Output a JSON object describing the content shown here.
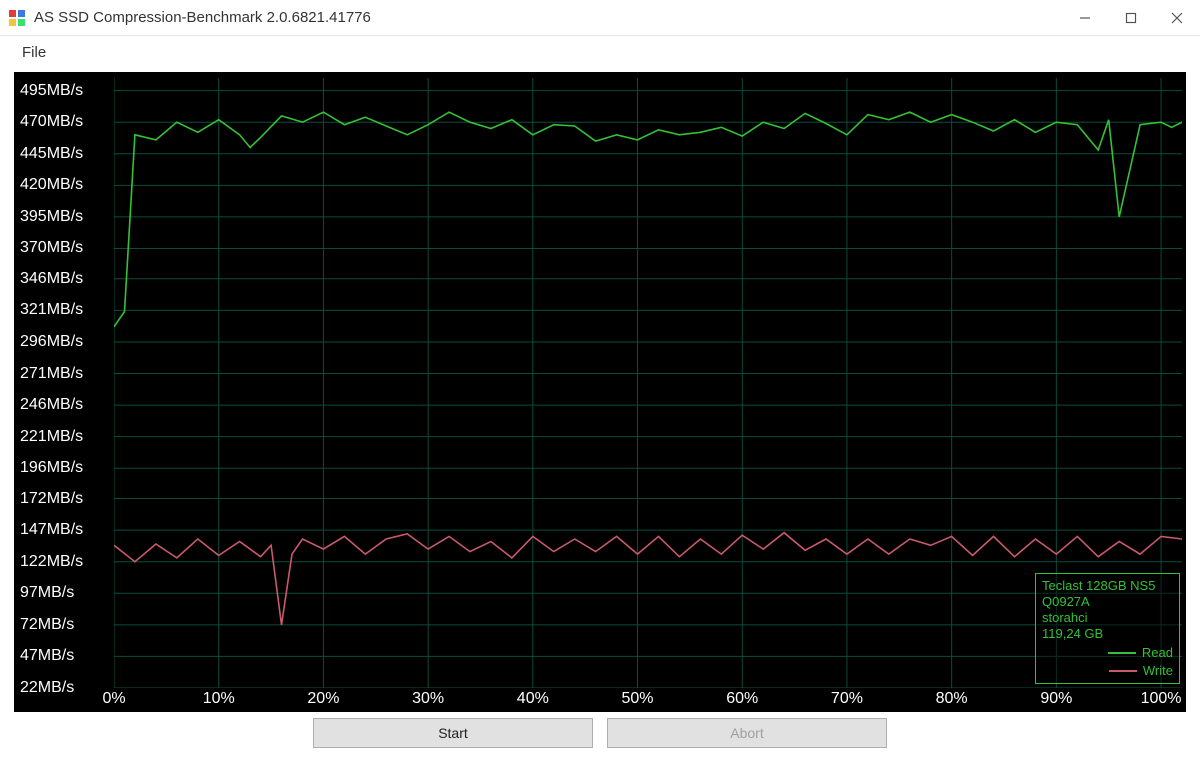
{
  "window": {
    "title": "AS SSD Compression-Benchmark 2.0.6821.41776"
  },
  "menu": {
    "file": "File"
  },
  "buttons": {
    "start": "Start",
    "abort": "Abort"
  },
  "chart": {
    "type": "line",
    "background_color": "#000000",
    "grid_color": "#0c4c3c",
    "axis_text_color": "#ffffff",
    "label_fontsize": 16,
    "y_min": 22,
    "y_max": 505,
    "y_ticks": [
      495,
      470,
      445,
      420,
      395,
      370,
      346,
      321,
      296,
      271,
      246,
      221,
      196,
      172,
      147,
      122,
      97,
      72,
      47,
      22
    ],
    "y_unit": "MB/s",
    "x_ticks": [
      0,
      10,
      20,
      30,
      40,
      50,
      60,
      70,
      80,
      90,
      100
    ],
    "x_unit": "%",
    "series": {
      "read": {
        "label": "Read",
        "color": "#35c135",
        "line_width": 1.6,
        "x": [
          0,
          1,
          2,
          4,
          6,
          8,
          10,
          12,
          13,
          14,
          16,
          18,
          20,
          22,
          24,
          26,
          28,
          30,
          32,
          34,
          36,
          38,
          40,
          42,
          44,
          46,
          48,
          50,
          52,
          54,
          56,
          58,
          60,
          62,
          64,
          66,
          68,
          70,
          72,
          74,
          76,
          78,
          80,
          82,
          84,
          86,
          88,
          90,
          92,
          94,
          95,
          96,
          98,
          100,
          101,
          102
        ],
        "y": [
          308,
          320,
          460,
          456,
          470,
          462,
          472,
          460,
          450,
          458,
          475,
          470,
          478,
          468,
          474,
          467,
          460,
          468,
          478,
          470,
          465,
          472,
          460,
          468,
          467,
          455,
          460,
          456,
          464,
          460,
          462,
          466,
          459,
          470,
          465,
          477,
          469,
          460,
          476,
          472,
          478,
          470,
          476,
          470,
          463,
          472,
          462,
          470,
          468,
          448,
          472,
          395,
          468,
          470,
          466,
          470
        ]
      },
      "write": {
        "label": "Write",
        "color": "#c95a6a",
        "line_width": 1.6,
        "x": [
          0,
          2,
          4,
          6,
          8,
          10,
          12,
          14,
          15,
          16,
          17,
          18,
          20,
          22,
          24,
          26,
          28,
          30,
          32,
          34,
          36,
          38,
          40,
          42,
          44,
          46,
          48,
          50,
          52,
          54,
          56,
          58,
          60,
          62,
          64,
          66,
          68,
          70,
          72,
          74,
          76,
          78,
          80,
          82,
          84,
          86,
          88,
          90,
          92,
          94,
          96,
          98,
          100,
          102
        ],
        "y": [
          135,
          122,
          136,
          125,
          140,
          127,
          138,
          126,
          135,
          72,
          128,
          140,
          132,
          142,
          128,
          140,
          144,
          132,
          142,
          130,
          138,
          125,
          142,
          130,
          140,
          130,
          142,
          128,
          142,
          126,
          140,
          128,
          143,
          132,
          145,
          131,
          140,
          128,
          140,
          128,
          140,
          135,
          142,
          127,
          142,
          126,
          140,
          128,
          142,
          126,
          138,
          128,
          142,
          140
        ]
      }
    },
    "legend": {
      "border_color": "#35c135",
      "text_color": "#35c135",
      "info": [
        "Teclast 128GB NS5",
        "Q0927A",
        "storahci",
        "119,24 GB"
      ]
    }
  }
}
